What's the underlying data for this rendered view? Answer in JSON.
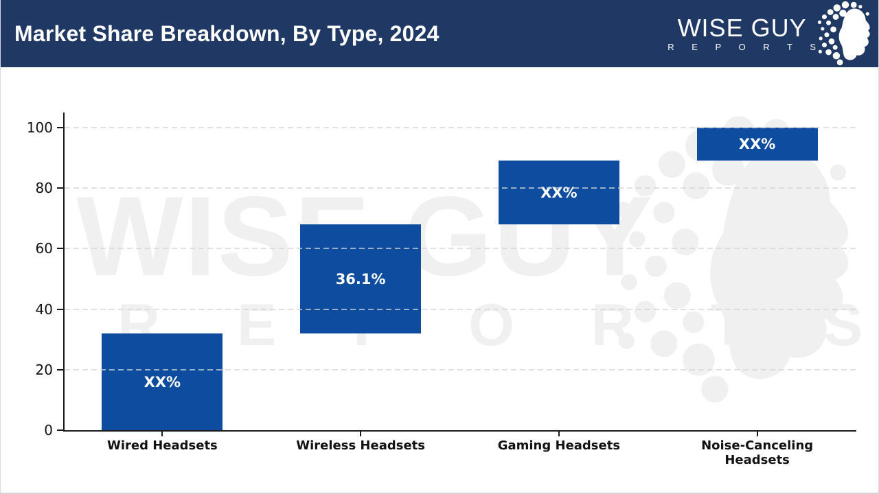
{
  "header": {
    "title": "Market Share Breakdown, By Type, 2024",
    "bg_color": "#1f3864",
    "logo": {
      "line1": "WISE GUY",
      "line2": "R E P O R T S"
    }
  },
  "watermark": {
    "line1": "WISE GUY",
    "line2": "R E P O R T S"
  },
  "chart_data": {
    "type": "bar",
    "subtype": "floating-waterfall",
    "title": "Market Share Breakdown, By Type, 2024",
    "xlabel": "",
    "ylabel": "",
    "categories": [
      "Wired Headsets",
      "Wireless Headsets",
      "Gaming Headsets",
      "Noise-Canceling Headsets"
    ],
    "bars": [
      {
        "category": "Wired Headsets",
        "start": 0,
        "end": 31.9,
        "label": "XX%"
      },
      {
        "category": "Wireless Headsets",
        "start": 31.9,
        "end": 68.0,
        "label": "36.1%"
      },
      {
        "category": "Gaming Headsets",
        "start": 68.0,
        "end": 89.1,
        "label": "XX%"
      },
      {
        "category": "Noise-Canceling Headsets",
        "start": 89.1,
        "end": 100.0,
        "label": "XX%"
      }
    ],
    "yticks": [
      "0",
      "20",
      "40",
      "60",
      "80",
      "100"
    ],
    "ylim": [
      0,
      105
    ],
    "grid": "horizontal-dashed",
    "legend": "none",
    "bar_color": "#0d4c9e",
    "bar_label_color": "#ffffff",
    "axis_color": "#1a1a1a",
    "grid_color": "#d9d9d9"
  }
}
